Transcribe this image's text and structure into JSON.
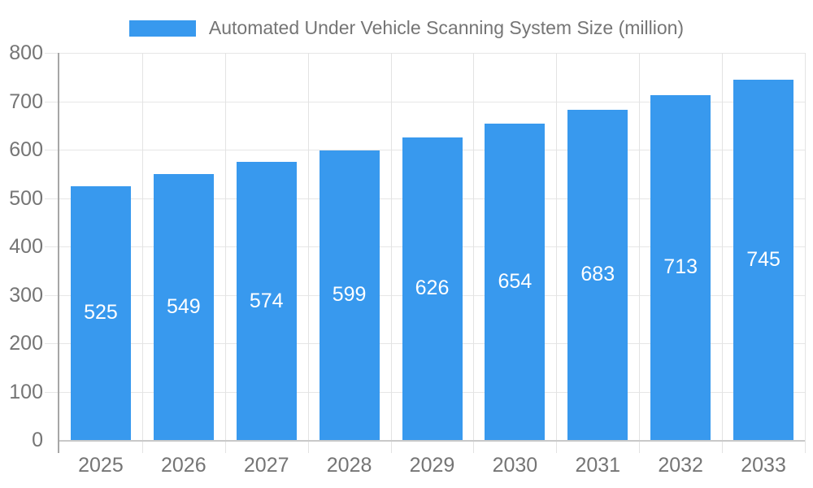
{
  "legend": {
    "label": "Automated Under Vehicle Scanning System Size (million)"
  },
  "chart_data": {
    "type": "bar",
    "title": "Automated Under Vehicle Scanning System Size (million)",
    "categories": [
      "2025",
      "2026",
      "2027",
      "2028",
      "2029",
      "2030",
      "2031",
      "2032",
      "2033"
    ],
    "values": [
      525,
      549,
      574,
      599,
      626,
      654,
      683,
      713,
      745
    ],
    "series": [
      {
        "name": "Automated Under Vehicle Scanning System Size (million)",
        "values": [
          525,
          549,
          574,
          599,
          626,
          654,
          683,
          713,
          745
        ]
      }
    ],
    "xlabel": "",
    "ylabel": "",
    "ylim": [
      0,
      800
    ],
    "yticks": [
      0,
      100,
      200,
      300,
      400,
      500,
      600,
      700,
      800
    ],
    "grid": true,
    "legend_position": "top-center",
    "value_labels": "inside-center",
    "colors": {
      "bar": "#3899ee",
      "grid": "#e6e6e6",
      "vgrid": "#e3e3e3",
      "axis_line": "#a6a6a6",
      "baseline": "#c9c9c9",
      "axis_text": "#757575",
      "value_text": "#ffffff",
      "background": "#ffffff"
    }
  }
}
